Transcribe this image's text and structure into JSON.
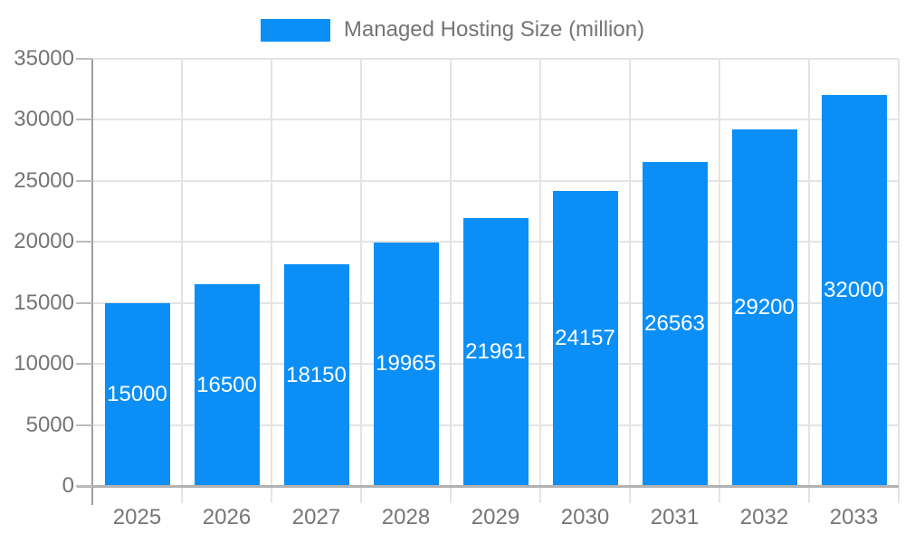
{
  "chart_data": {
    "type": "bar",
    "title": "Managed Hosting Size (million)",
    "categories": [
      "2025",
      "2026",
      "2027",
      "2028",
      "2029",
      "2030",
      "2031",
      "2032",
      "2033"
    ],
    "series": [
      {
        "name": "Managed Hosting Size (million)",
        "values": [
          15000,
          16500,
          18150,
          19965,
          21961,
          24157,
          26563,
          29200,
          32000
        ]
      }
    ],
    "xlabel": "",
    "ylabel": "",
    "ylim": [
      0,
      35000
    ],
    "yticks": [
      0,
      5000,
      10000,
      15000,
      20000,
      25000,
      30000,
      35000
    ],
    "grid": true,
    "legend_position": "top-center",
    "bar_value_labels": "inside-center"
  },
  "colors": {
    "bar": "#0b8ff7",
    "bar_label_text": "#ffffff",
    "axis_text": "#757575",
    "gridline": "#e4e4e4",
    "axis_line": "#b2b2b2"
  }
}
